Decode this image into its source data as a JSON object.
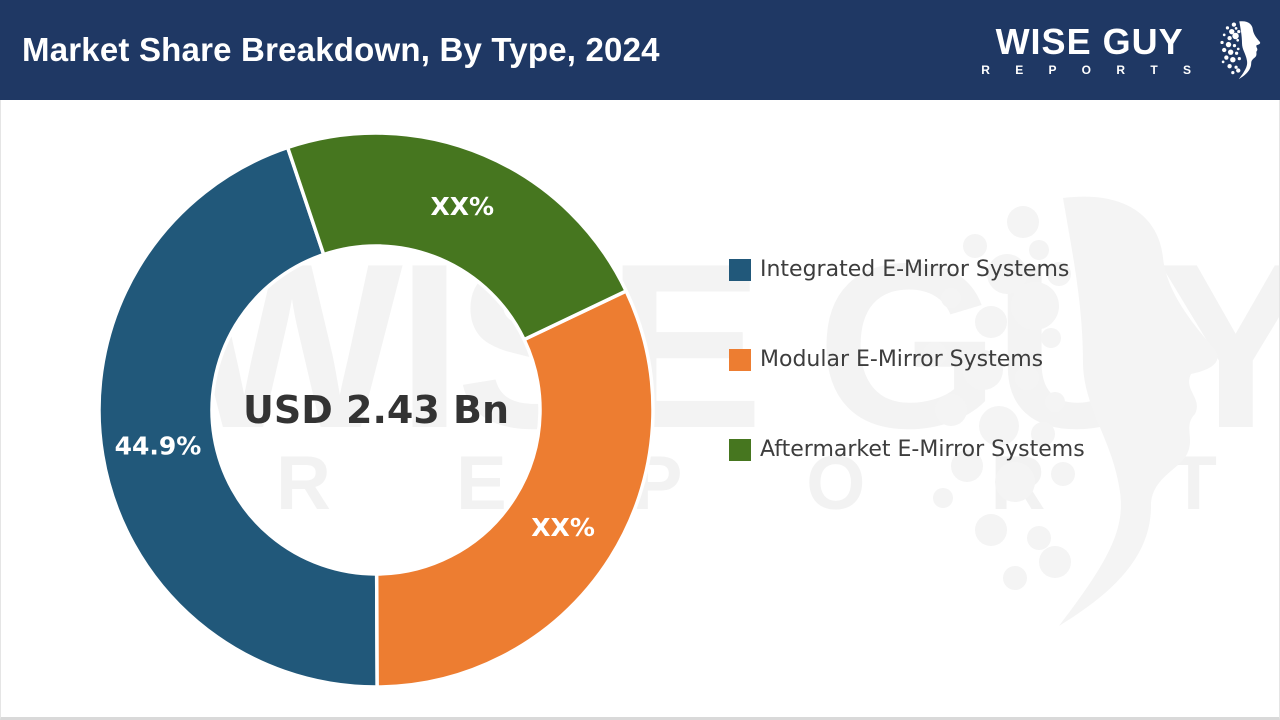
{
  "header": {
    "title": "Market Share Breakdown, By Type, 2024",
    "logo": {
      "primary": "WISE GUY",
      "secondary": "R E P O R T S"
    }
  },
  "watermark": {
    "primary": "WISE GUY",
    "secondary": "R E P O R T S"
  },
  "chart_data": {
    "type": "donut",
    "title": "Market Share Breakdown, By Type, 2024",
    "center_label": "USD 2.43 Bn",
    "start_angle_deg": 108.6,
    "direction": "counterclockwise",
    "legend_position": "right",
    "segments": [
      {
        "label": "Integrated E-Mirror Systems",
        "display_value": "44.9%",
        "value_pct": 44.9,
        "color": "#21587a"
      },
      {
        "label": "Modular E-Mirror Systems",
        "display_value": "XX%",
        "value_pct": 32.0,
        "color": "#ed7d31"
      },
      {
        "label": "Aftermarket E-Mirror Systems",
        "display_value": "XX%",
        "value_pct": 23.1,
        "color": "#46761f"
      }
    ],
    "colors": {
      "header_navy": "#1f3864",
      "center_text": "#333333",
      "legend_text": "#3d3d3d",
      "segment_label_text": "#ffffff"
    }
  }
}
